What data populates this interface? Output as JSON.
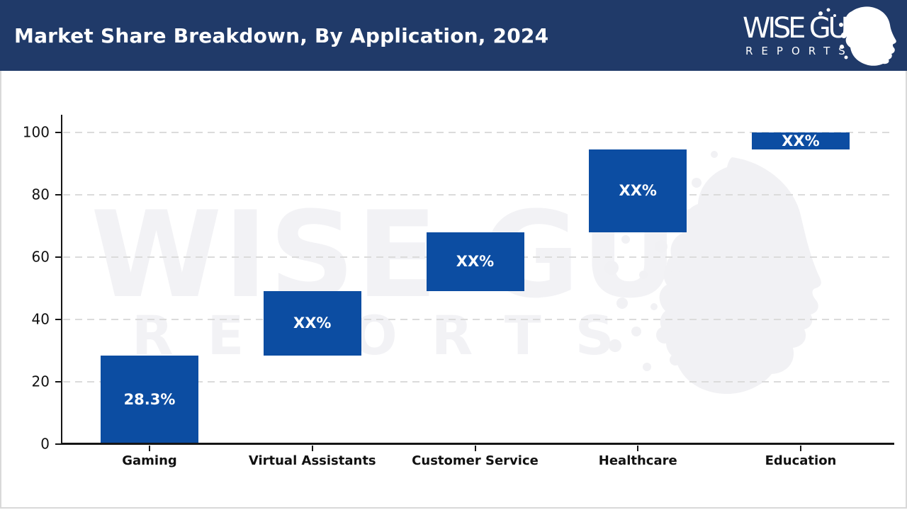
{
  "header": {
    "title": "Market Share Breakdown, By Application, 2024",
    "bg_color": "#203a69",
    "logo": {
      "line1": "WISE GUY",
      "line2": "REPORTS"
    }
  },
  "watermark": {
    "line1": "WISE GUY",
    "line2": "REPORTS"
  },
  "chart_data": {
    "type": "bar",
    "subtype": "waterfall",
    "title": "Market Share Breakdown, By Application, 2024",
    "categories": [
      "Gaming",
      "Virtual Assistants",
      "Customer Service",
      "Healthcare",
      "Education"
    ],
    "segments": [
      {
        "category": "Gaming",
        "start": 0,
        "end": 28.3,
        "label": "28.3%"
      },
      {
        "category": "Virtual Assistants",
        "start": 28.3,
        "end": 49.0,
        "label": "XX%"
      },
      {
        "category": "Customer Service",
        "start": 49.0,
        "end": 68.0,
        "label": "XX%"
      },
      {
        "category": "Healthcare",
        "start": 68.0,
        "end": 94.5,
        "label": "XX%"
      },
      {
        "category": "Education",
        "start": 94.5,
        "end": 100.0,
        "label": "XX%"
      }
    ],
    "yticks": [
      0,
      20,
      40,
      60,
      80,
      100
    ],
    "ylim": [
      0,
      105
    ],
    "xlabel": "",
    "ylabel": "",
    "grid": "horizontal-dashed",
    "legend": "none",
    "bar_color": "#0c4da2",
    "bar_label_color": "#ffffff",
    "axis_color": "#151515"
  }
}
